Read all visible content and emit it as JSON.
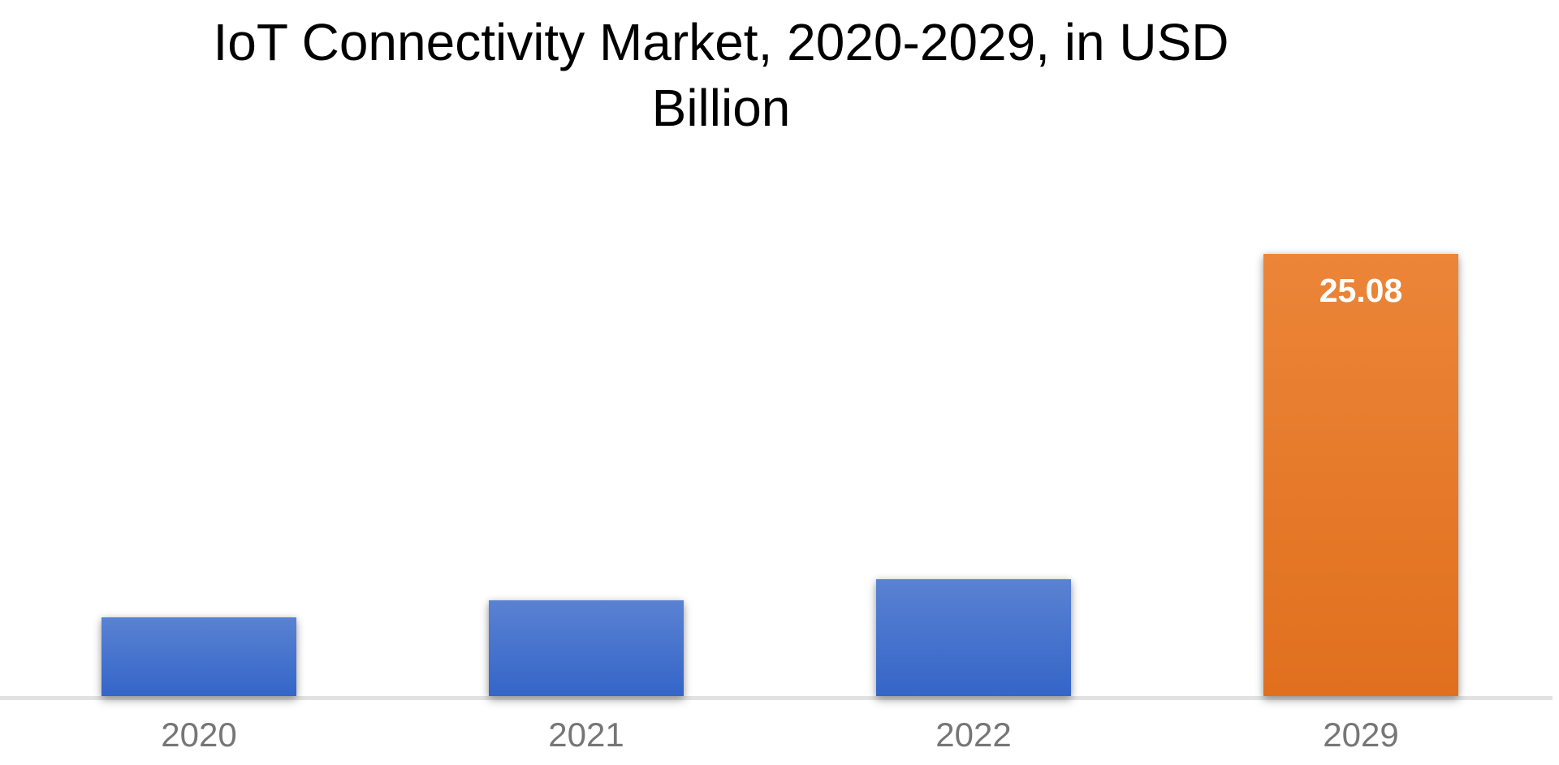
{
  "title": {
    "line1": "IoT Connectivity Market, 2020-2029, in USD",
    "line2": "Billion"
  },
  "chart_data": {
    "type": "bar",
    "title": "IoT Connectivity Market, 2020-2029, in USD Billion",
    "categories": [
      "2020",
      "2021",
      "2022",
      "2029"
    ],
    "values": [
      4.45,
      5.44,
      6.61,
      25.08
    ],
    "data_labels": [
      "",
      "",
      "",
      "25.08"
    ],
    "highlight_index": 3,
    "point_colors": [
      "blue",
      "blue",
      "blue",
      "orange"
    ],
    "colors": {
      "blue": {
        "top": "#5A82D2",
        "bottom": "#3465C8",
        "flat": "#4472C4"
      },
      "orange": {
        "top": "#EC8538",
        "bottom": "#E0701E",
        "flat": "#ED7D31"
      }
    },
    "axis": {
      "baseline_color": "#E2E2E2",
      "x_label_color": "#767676",
      "data_label_color": "#FFFFFF",
      "y_axis_visible": false,
      "gridlines": false,
      "legend": "none"
    },
    "xlabel": "",
    "ylabel": "",
    "ylim": [
      0,
      25.08
    ]
  }
}
